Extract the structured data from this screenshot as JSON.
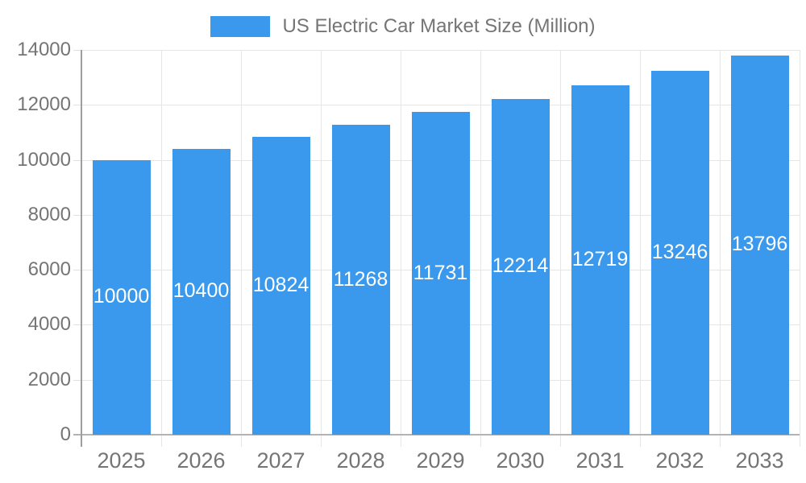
{
  "chart_data": {
    "type": "bar",
    "title": "US Electric Car Market Size (Million)",
    "categories": [
      "2025",
      "2026",
      "2027",
      "2028",
      "2029",
      "2030",
      "2031",
      "2032",
      "2033"
    ],
    "values": [
      10000,
      10400,
      10824,
      11268,
      11731,
      12214,
      12719,
      13246,
      13796
    ],
    "value_labels": [
      "10000",
      "10400",
      "10824",
      "11268",
      "11731",
      "12214",
      "12719",
      "13246",
      "13796"
    ],
    "xlabel": "",
    "ylabel": "",
    "ylim": [
      0,
      14000
    ],
    "ytick_step": 2000,
    "ytick_labels": [
      "0",
      "2000",
      "4000",
      "6000",
      "8000",
      "10000",
      "12000",
      "14000"
    ],
    "grid": "horizontal-and-vertical",
    "legend_position": "top-center",
    "value_labels_position": "inside-center",
    "colors": {
      "bar": "#3a99ec",
      "gridline": "#e6e6e6",
      "axis_line": "#9e9e9e",
      "baseline": "#b3b3b3",
      "axis_text": "#757575",
      "title_text": "#757575",
      "value_label_text": "#ffffff",
      "background": "#ffffff"
    }
  }
}
